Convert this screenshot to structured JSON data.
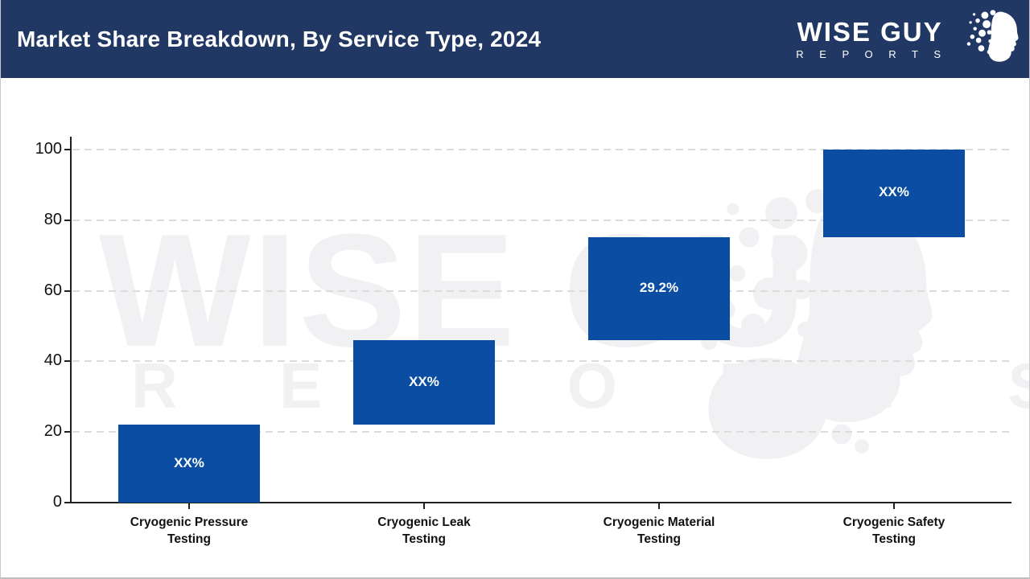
{
  "header": {
    "title": "Market Share Breakdown, By Service Type, 2024",
    "logo": {
      "name": "WISE GUY",
      "sub": "R E P O R T S"
    }
  },
  "watermark": {
    "line1": "WISE GU",
    "line2": "R E P O R T S"
  },
  "colors": {
    "header_bg": "#213764",
    "bar": "#0b4da2",
    "watermark": "#f1f1f3",
    "grid": "#dcdcdc",
    "axis": "#1f1f1f"
  },
  "chart_data": {
    "type": "bar",
    "subtype": "waterfall-floating-segments",
    "title": "Market Share Breakdown, By Service Type, 2024",
    "categories": [
      "Cryogenic Pressure\nTesting",
      "Cryogenic Leak\nTesting",
      "Cryogenic Material\nTesting",
      "Cryogenic Safety\nTesting"
    ],
    "bars": [
      {
        "start": 0,
        "end": 22,
        "label": "XX%"
      },
      {
        "start": 22,
        "end": 46,
        "label": "XX%"
      },
      {
        "start": 46,
        "end": 75.2,
        "label": "29.2%"
      },
      {
        "start": 75.2,
        "end": 100,
        "label": "XX%"
      }
    ],
    "values": [
      22,
      24,
      29.2,
      24.8
    ],
    "yticks": [
      0,
      20,
      40,
      60,
      80,
      100
    ],
    "ylim": [
      0,
      100
    ],
    "xlabel": "",
    "ylabel": "",
    "grid": "horizontal-dashed",
    "legend": "none",
    "bar_color": "#0b4da2",
    "bar_label_color": "#ffffff"
  }
}
